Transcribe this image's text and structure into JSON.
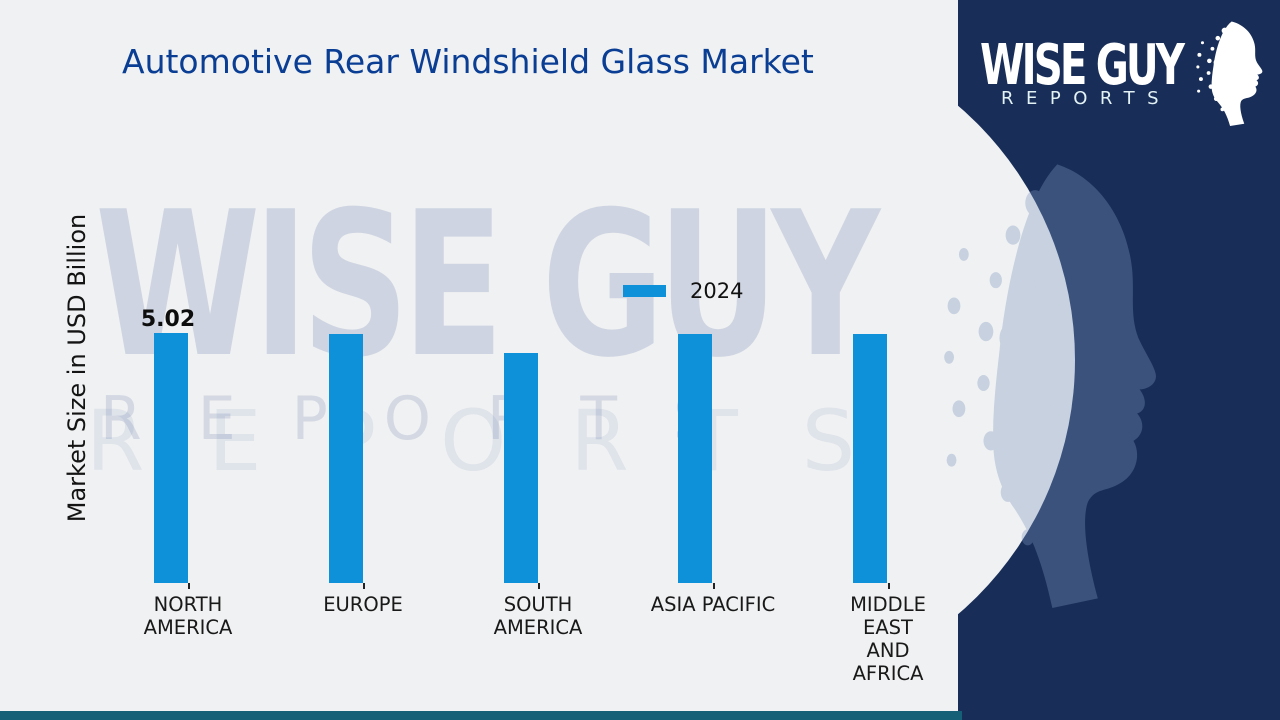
{
  "page": {
    "background_color": "#f0f1f2",
    "accent_navy": "#182e58",
    "accent_teal": "#156077"
  },
  "title": {
    "text": "Automotive Rear Windshield Glass Market",
    "color": "#0a3e94"
  },
  "brand_logo": {
    "name_line": "WISE GUY",
    "sub_line": "REPORTS"
  },
  "watermark": {
    "name_line": "WISE GUY",
    "sub_line": "REPORTS"
  },
  "chart_data": {
    "type": "bar",
    "title": "Automotive Rear Windshield Glass Market",
    "ylabel": "Market Size in USD Billion",
    "xlabel": "",
    "categories": [
      "NORTH AMERICA",
      "EUROPE",
      "SOUTH AMERICA",
      "ASIA PACIFIC",
      "MIDDLE EAST AND AFRICA"
    ],
    "series": [
      {
        "name": "2024",
        "values": [
          5.02,
          5.0,
          4.62,
          5.0,
          5.0
        ]
      }
    ],
    "value_labels": [
      "5.02",
      "",
      "",
      "",
      ""
    ],
    "bar_color": "#0f91d9",
    "legend": {
      "entries": [
        "2024"
      ],
      "position": "top-right-of-plot"
    },
    "grid": false,
    "ylim": [
      0,
      5.9
    ]
  }
}
